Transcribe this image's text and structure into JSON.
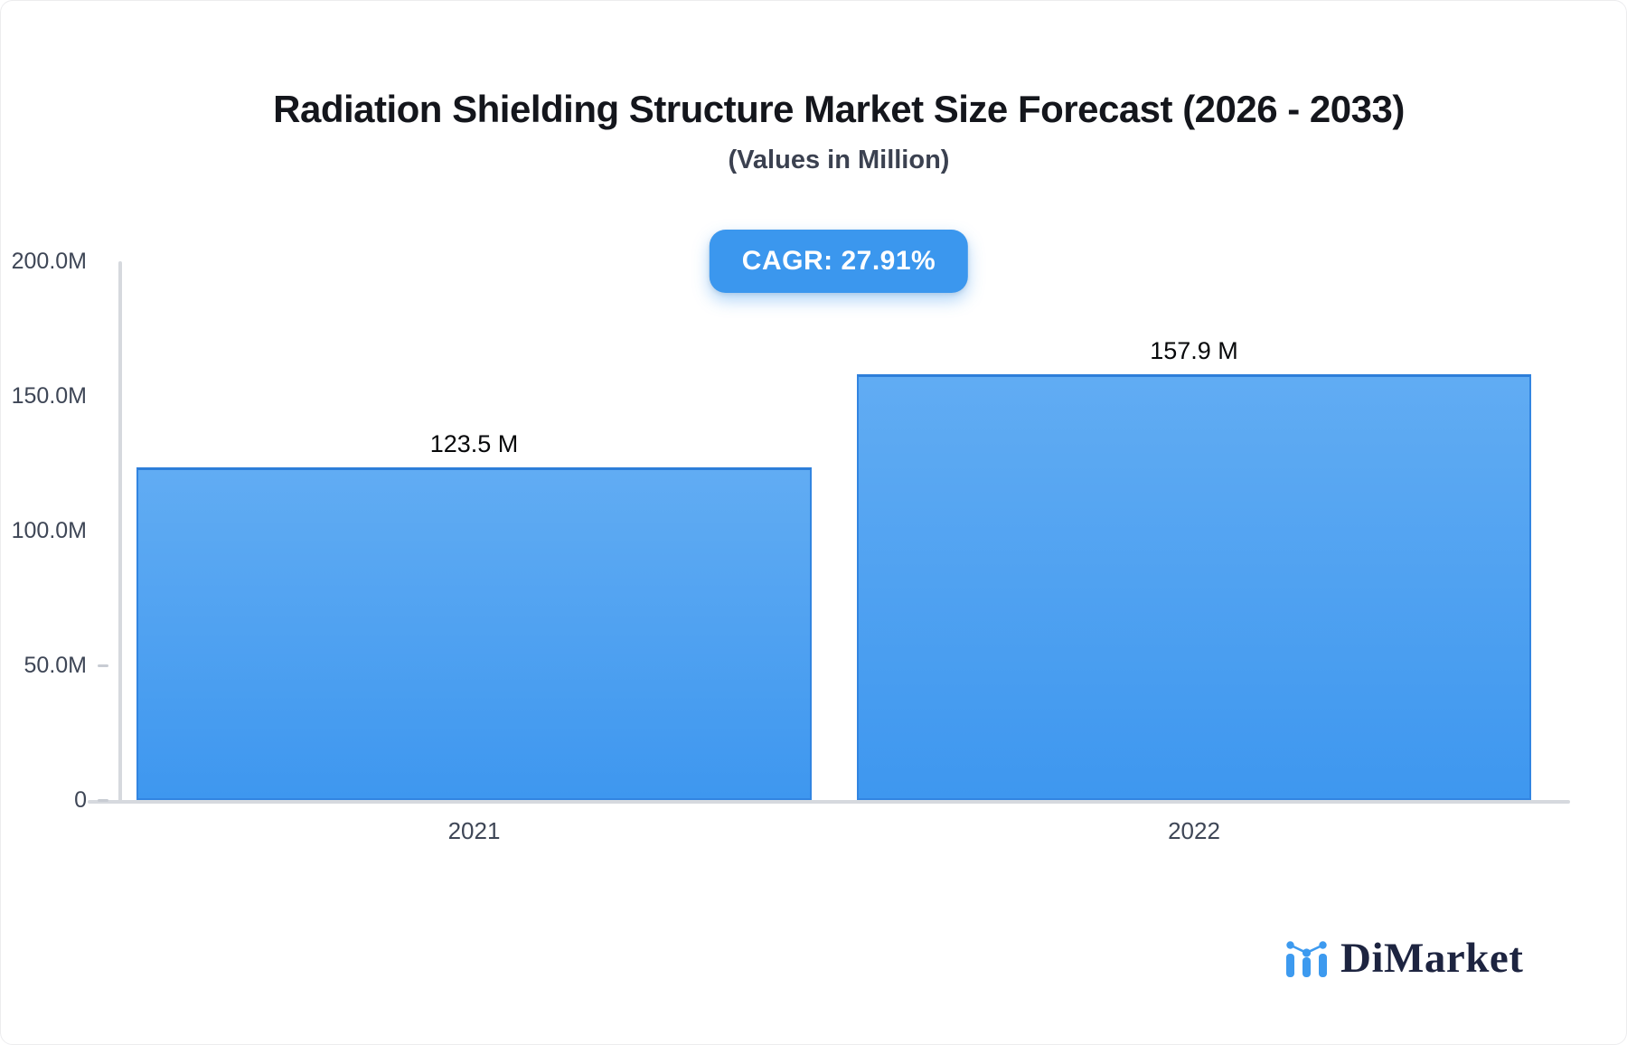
{
  "header": {
    "title": "Radiation Shielding Structure Market Size Forecast (2026 - 2033)",
    "subtitle": "(Values in Million)",
    "cagr_badge": "CAGR: 27.91%"
  },
  "chart_data": {
    "type": "bar",
    "title": "Radiation Shielding Structure Market Size Forecast (2026 - 2033)",
    "subtitle": "(Values in Million)",
    "unit": "Million",
    "cagr_percent": 27.91,
    "categories": [
      "2021",
      "2022"
    ],
    "values": [
      123.5,
      157.9
    ],
    "bar_labels": [
      "123.5 M",
      "157.9 M"
    ],
    "ylim": [
      0,
      200
    ],
    "y_ticks": [
      {
        "label": "200.0M",
        "value": 200,
        "dash": false
      },
      {
        "label": "150.0M",
        "value": 150,
        "dash": false
      },
      {
        "label": "100.0M",
        "value": 100,
        "dash": false
      },
      {
        "label": "50.0M",
        "value": 50,
        "dash": true
      },
      {
        "label": "0",
        "value": 0,
        "dash": true
      }
    ],
    "grid": false,
    "legend": false,
    "bar_color_top": "#61acf3",
    "bar_color_bottom": "#3e97ef",
    "bar_border_color": "#3285e1"
  },
  "branding": {
    "logo_text": "DiMarket",
    "logo_icon": "bar-line-chart-icon",
    "logo_icon_color": "#3d9aef",
    "logo_text_color": "#1d2440"
  },
  "colors": {
    "accent_blue": "#3b97ee",
    "axis_line": "#d6d9de",
    "tick_text": "#3e4656",
    "title_text": "#14161c"
  }
}
